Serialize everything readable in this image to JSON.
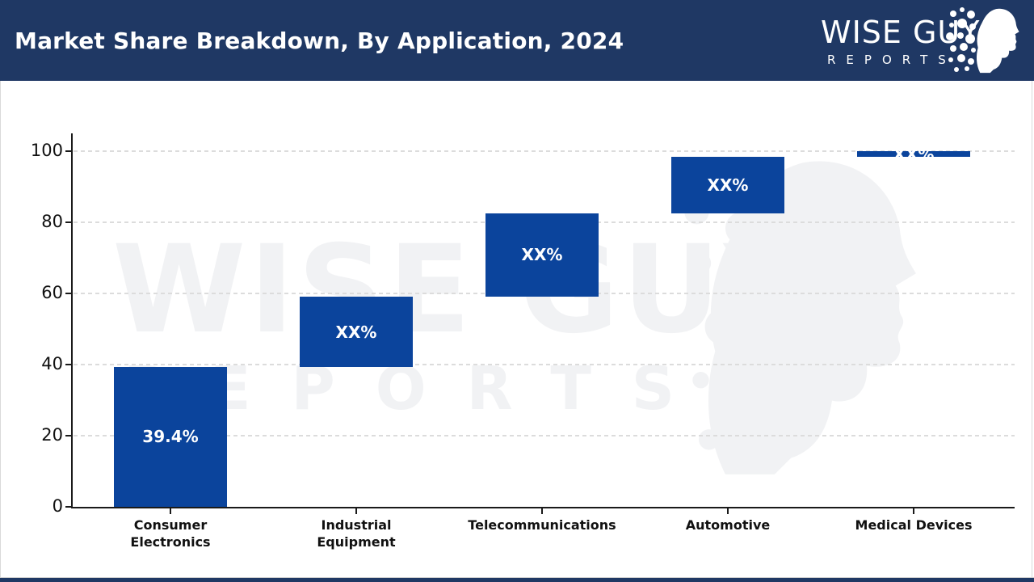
{
  "header": {
    "title": "Market Share Breakdown, By Application, 2024"
  },
  "logo": {
    "line1": "WISE GUY",
    "line2": "REPORTS"
  },
  "watermark": {
    "line1": "WISE GUY",
    "line2": "REPORTS"
  },
  "colors": {
    "header_bg": "#1f3864",
    "footer_bg": "#1f3864",
    "bar": "#0b449c",
    "bar_label": "#ffffff",
    "axis": "#1a1a1a",
    "gridline": "#dcdcdc",
    "watermark": "#f1f2f4"
  },
  "chart_data": {
    "type": "bar",
    "subtype": "waterfall",
    "title": "Market Share Breakdown, By Application, 2024",
    "categories": [
      "Consumer Electronics",
      "Industrial Equipment",
      "Telecommunications",
      "Automotive",
      "Medical Devices"
    ],
    "tick_labels": [
      "Consumer\nElectronics",
      "Industrial\nEquipment",
      "Telecommunications",
      "Automotive",
      "Medical Devices"
    ],
    "segments": [
      {
        "category": "Consumer Electronics",
        "start": 0,
        "end": 39.4,
        "label": "39.4%"
      },
      {
        "category": "Industrial Equipment",
        "start": 39.4,
        "end": 59.0,
        "label": "XX%"
      },
      {
        "category": "Telecommunications",
        "start": 59.0,
        "end": 82.6,
        "label": "XX%"
      },
      {
        "category": "Automotive",
        "start": 82.6,
        "end": 98.3,
        "label": "XX%"
      },
      {
        "category": "Medical Devices",
        "start": 98.3,
        "end": 100.0,
        "label": "XX%"
      }
    ],
    "yticks": [
      0,
      20,
      40,
      60,
      80,
      100
    ],
    "ylim": [
      0,
      105
    ],
    "xlabel": "",
    "ylabel": "",
    "bar_color": "#0b449c",
    "grid": "horizontal-dashed",
    "legend": "none"
  }
}
